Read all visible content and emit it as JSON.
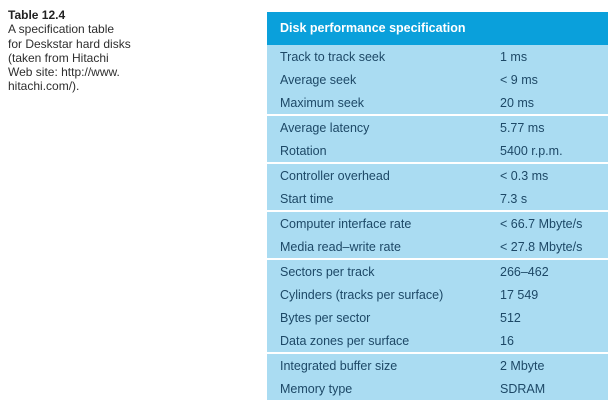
{
  "caption": {
    "title": "Table 12.4",
    "lines": [
      "A specification table",
      "for Deskstar hard disks",
      "(taken from Hitachi",
      "Web site: http://www.",
      "hitachi.com/)."
    ]
  },
  "table": {
    "header": "Disk performance specification",
    "rows": [
      {
        "label": "Track to track seek",
        "value": "1 ms"
      },
      {
        "label": "Average seek",
        "value": "< 9 ms"
      },
      {
        "label": "Maximum seek",
        "value": "20 ms"
      },
      {
        "label": "Average latency",
        "value": "5.77 ms"
      },
      {
        "label": "Rotation",
        "value": "5400 r.p.m."
      },
      {
        "label": "Controller overhead",
        "value": "< 0.3 ms"
      },
      {
        "label": "Start time",
        "value": "7.3 s"
      },
      {
        "label": "Computer interface rate",
        "value": "< 66.7 Mbyte/s"
      },
      {
        "label": "Media read–write rate",
        "value": "< 27.8 Mbyte/s"
      },
      {
        "label": "Sectors per track",
        "value": "266–462"
      },
      {
        "label": "Cylinders (tracks per surface)",
        "value": "17 549"
      },
      {
        "label": "Bytes per sector",
        "value": "512"
      },
      {
        "label": "Data zones per surface",
        "value": "16"
      },
      {
        "label": "Integrated buffer size",
        "value": "2 Mbyte"
      },
      {
        "label": "Memory type",
        "value": "SDRAM"
      }
    ]
  },
  "colors": {
    "header_bg": "#0aa0db",
    "header_text": "#ffffff",
    "body_bg": "#aadcf2",
    "row_text": "#1d4866"
  }
}
